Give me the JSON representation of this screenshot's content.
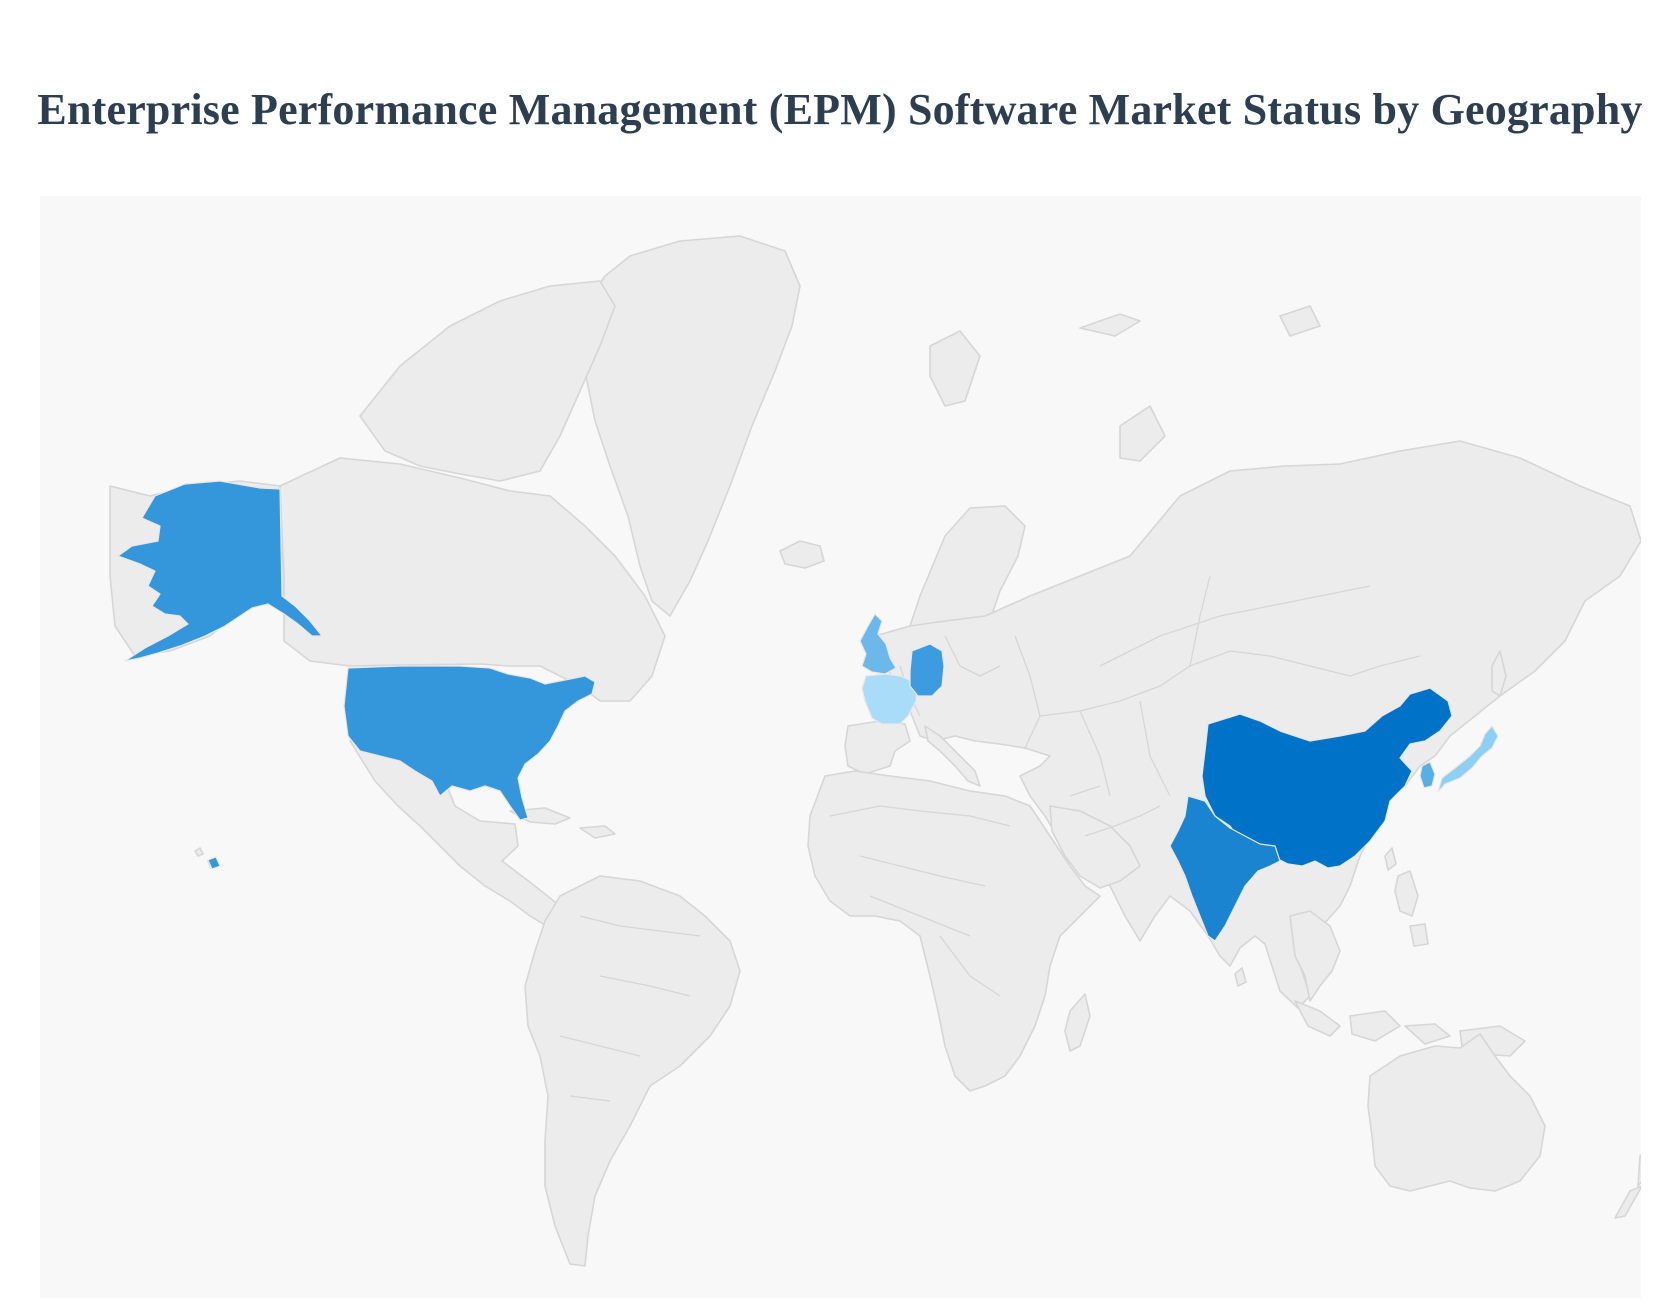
{
  "title": "Enterprise Performance Management (EPM) Software Market Status by Geography",
  "map": {
    "type": "choropleth",
    "projection": "mercator",
    "background": "#f8f8f8",
    "land_color": "#ececec",
    "border_color": "#d6d6d6",
    "legend": "none",
    "highlighted_regions": [
      {
        "name": "United States",
        "color": "#3496db"
      },
      {
        "name": "China",
        "color": "#0073c9"
      },
      {
        "name": "India",
        "color": "#1a84d1"
      },
      {
        "name": "Germany",
        "color": "#3d9be0"
      },
      {
        "name": "United Kingdom",
        "color": "#6cb8ea"
      },
      {
        "name": "South Korea",
        "color": "#5aaee6"
      },
      {
        "name": "Japan",
        "color": "#8ecff4"
      },
      {
        "name": "France",
        "color": "#a9dcf8"
      }
    ]
  }
}
